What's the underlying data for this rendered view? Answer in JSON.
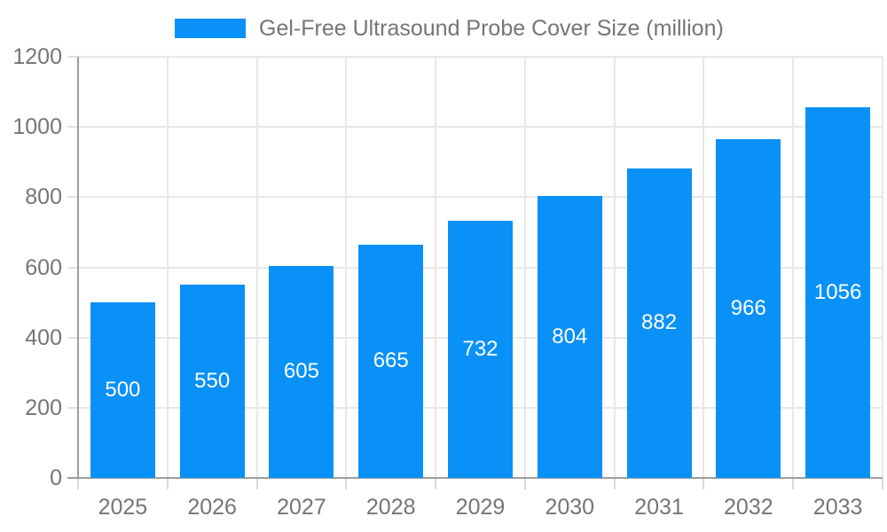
{
  "legend": {
    "label": "Gel-Free Ultrasound Probe Cover Size (million)"
  },
  "chart_data": {
    "type": "bar",
    "title": "Gel-Free Ultrasound Probe Cover Size (million)",
    "series_name": "Gel-Free Ultrasound Probe Cover Size (million)",
    "categories": [
      "2025",
      "2026",
      "2027",
      "2028",
      "2029",
      "2030",
      "2031",
      "2032",
      "2033"
    ],
    "values": [
      500,
      550,
      605,
      665,
      732,
      804,
      882,
      966,
      1056
    ],
    "xlabel": "",
    "ylabel": "",
    "ylim": [
      0,
      1200
    ],
    "yticks": [
      0,
      200,
      400,
      600,
      800,
      1000,
      1200
    ],
    "grid": true,
    "legend_position": "top",
    "value_labels_position": "inside-center",
    "colors": {
      "bar": "#0a91f7",
      "value_label": "#ffffff",
      "tick_label": "#757575",
      "gridline": "#e7e7e7",
      "axis": "#9e9e9e"
    }
  }
}
